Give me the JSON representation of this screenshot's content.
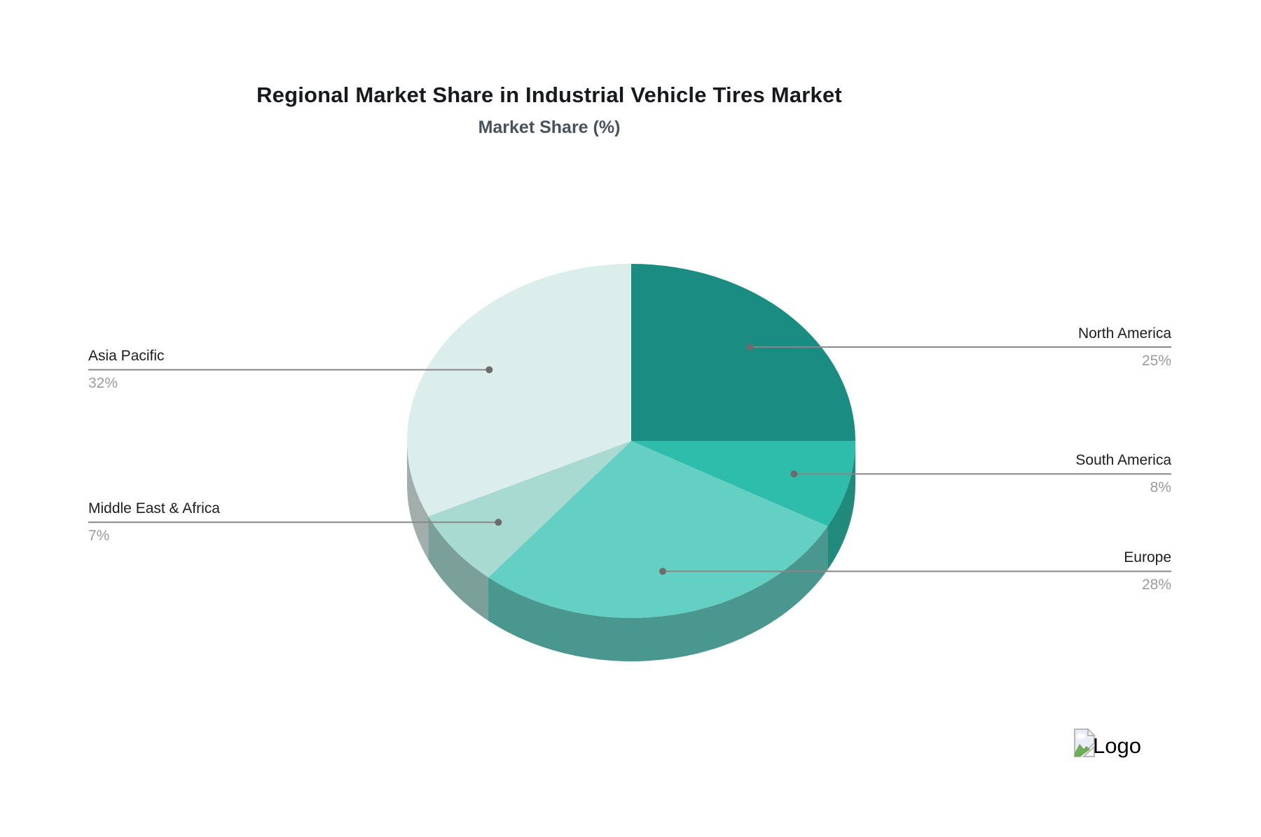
{
  "chart_data": {
    "type": "pie",
    "style": "3d",
    "title": "Regional Market Share in Industrial Vehicle Tires Market",
    "subtitle": "Market Share (%)",
    "unit": "%",
    "legend": "none",
    "categories": [
      "North America",
      "South America",
      "Europe",
      "Middle East & Africa",
      "Asia Pacific"
    ],
    "values": [
      25,
      8,
      28,
      7,
      32
    ],
    "slices": [
      {
        "label": "North America",
        "value": 25,
        "pct": "25%",
        "color": "#1b8c81"
      },
      {
        "label": "South America",
        "value": 8,
        "pct": "8%",
        "color": "#2ebcab"
      },
      {
        "label": "Europe",
        "value": 28,
        "pct": "28%",
        "color": "#64cfc3"
      },
      {
        "label": "Middle East & Africa",
        "value": 7,
        "pct": "7%",
        "color": "#a9dad2"
      },
      {
        "label": "Asia Pacific",
        "value": 32,
        "pct": "32%",
        "color": "#dceeec"
      }
    ],
    "leader_line_color": "#878787",
    "leader_dot_color": "#6c6c6c",
    "label_color": "#1d1d1d",
    "percent_color": "#9b9b9b"
  },
  "logo": {
    "alt": "Logo"
  }
}
